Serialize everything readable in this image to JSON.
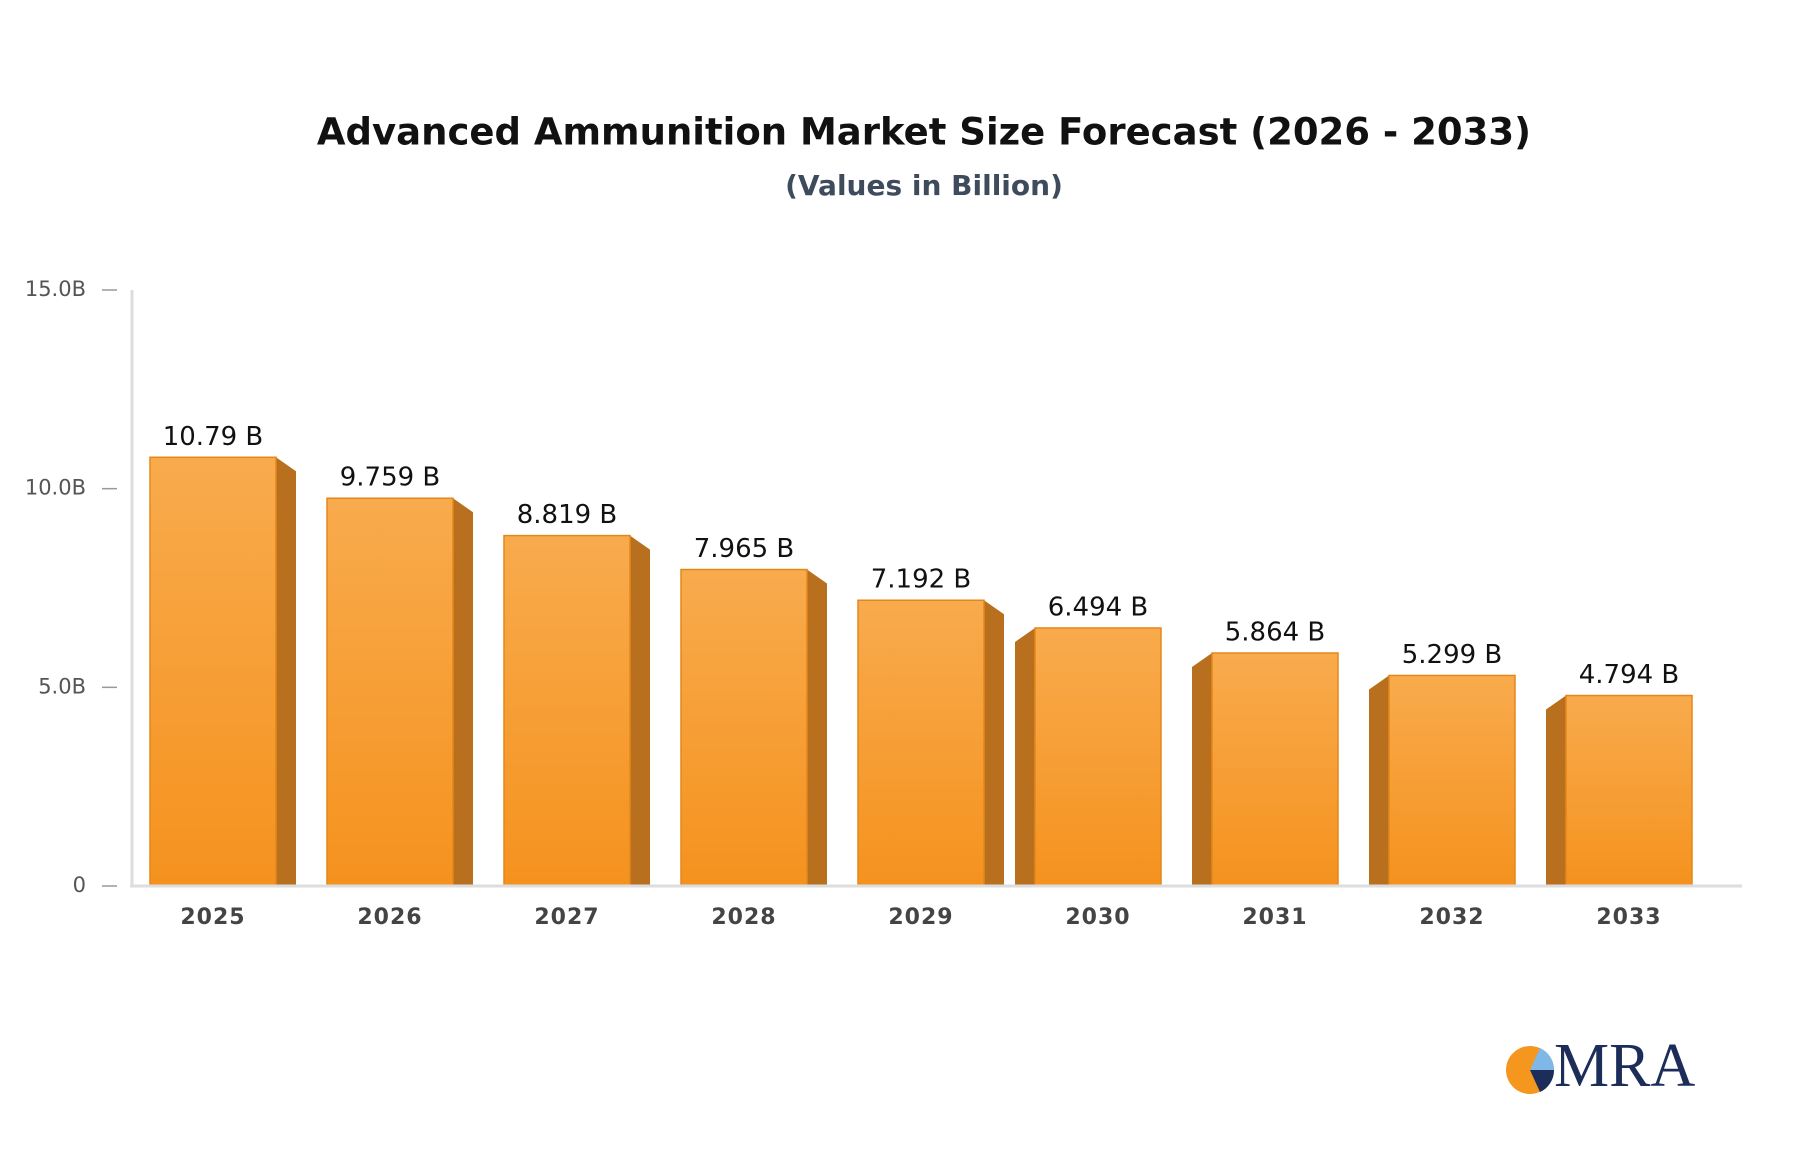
{
  "chart_data": {
    "type": "bar3d",
    "title": "Advanced Ammunition Market Size Forecast (2026 - 2033)",
    "subtitle": "(Values in Billion)",
    "categories": [
      "2025",
      "2026",
      "2027",
      "2028",
      "2029",
      "2030",
      "2031",
      "2032",
      "2033"
    ],
    "values": [
      10.79,
      9.759,
      8.819,
      7.965,
      7.192,
      6.494,
      5.864,
      5.299,
      4.794
    ],
    "value_labels": [
      "10.79 B",
      "9.759 B",
      "8.819 B",
      "7.965 B",
      "7.192 B",
      "6.494 B",
      "5.864 B",
      "5.299 B",
      "4.794 B"
    ],
    "color": "#f5961f",
    "ylim": [
      0,
      15
    ],
    "yticks": [
      0,
      {
        "value": 5,
        "label": "5.0B"
      },
      {
        "value": 10,
        "label": "10.0B"
      },
      {
        "value": 15,
        "label": "15.0B"
      }
    ]
  },
  "logo": "MRA"
}
